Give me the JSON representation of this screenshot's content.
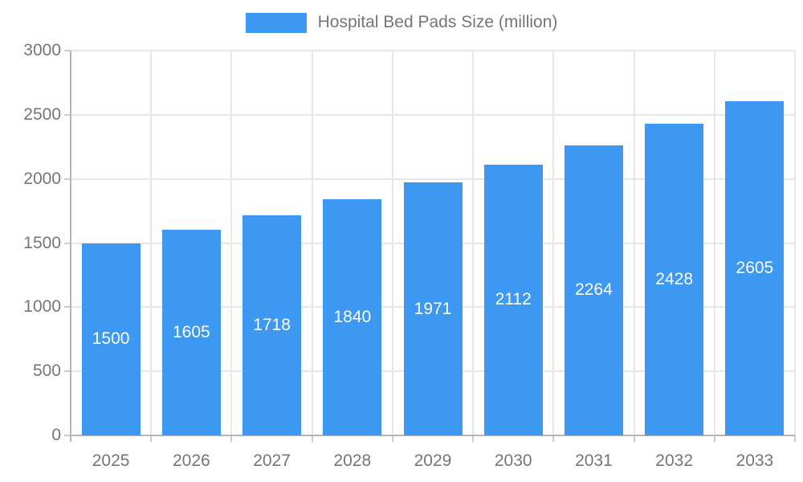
{
  "chart_data": {
    "type": "bar",
    "title": "Hospital Bed Pads Size (million)",
    "categories": [
      "2025",
      "2026",
      "2027",
      "2028",
      "2029",
      "2030",
      "2031",
      "2032",
      "2033"
    ],
    "values": [
      1500,
      1605,
      1718,
      1840,
      1971,
      2112,
      2264,
      2428,
      2605
    ],
    "xlabel": "",
    "ylabel": "",
    "ylim": [
      0,
      3000
    ],
    "yticks": [
      0,
      500,
      1000,
      1500,
      2000,
      2500,
      3000
    ],
    "legend": {
      "label": "Hospital Bed Pads Size (million)",
      "position": "top-center"
    },
    "grid": true,
    "value_label_position": "inside-center",
    "colors": {
      "bar": "#3c98f0",
      "bar_value_label": "#ffffff",
      "axis_text": "#757575",
      "legend_text": "#757575",
      "gridline": "#e7e7e7",
      "axis_line": "#b5b5b5",
      "tick": "#cccccc",
      "background": "#ffffff"
    }
  }
}
